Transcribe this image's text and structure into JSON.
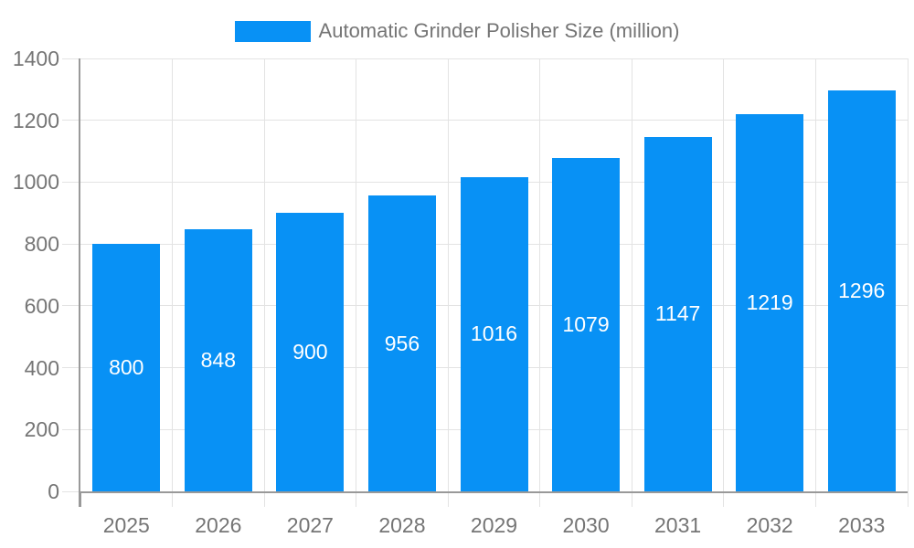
{
  "chart_data": {
    "type": "bar",
    "title": "Automatic Grinder Polisher Size (million)",
    "series_name": "Automatic Grinder Polisher Size (million)",
    "categories": [
      "2025",
      "2026",
      "2027",
      "2028",
      "2029",
      "2030",
      "2031",
      "2032",
      "2033"
    ],
    "values": [
      800,
      848,
      900,
      956,
      1016,
      1079,
      1147,
      1219,
      1296
    ],
    "xlabel": "",
    "ylabel": "",
    "ylim": [
      0,
      1400
    ],
    "yticks": [
      0,
      200,
      400,
      600,
      800,
      1000,
      1200,
      1400
    ],
    "grid": true,
    "legend_position": "top",
    "bar_color": "#0891F5",
    "bar_label_color": "#ffffff",
    "axis_text_color": "#757575",
    "axis_line_color": "#999999",
    "grid_color": "#e3e3e3",
    "background_color": "#ffffff"
  }
}
